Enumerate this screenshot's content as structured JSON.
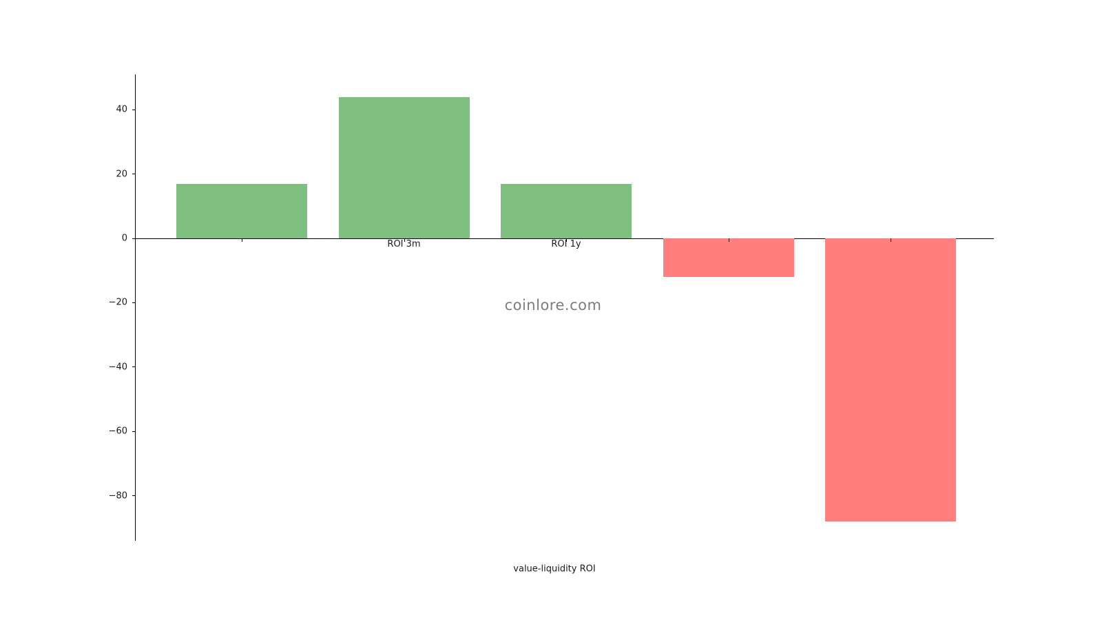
{
  "chart_data": {
    "type": "bar",
    "categories": [
      "",
      "ROI 3m",
      "ROI 1y",
      "",
      ""
    ],
    "values": [
      17,
      44,
      17,
      -12,
      -88
    ],
    "bar_colors": [
      "#7fbf7f",
      "#7fbf7f",
      "#7fbf7f",
      "#ff7f7f",
      "#ff7f7f"
    ],
    "positive_color": "#7fbf7f",
    "negative_color": "#ff7f7f",
    "title": "",
    "xlabel": "value-liquidity ROI",
    "ylabel": "",
    "yticks": [
      40,
      20,
      0,
      -20,
      -40,
      -60,
      -80
    ],
    "ylim": [
      -94,
      51
    ],
    "grid": false,
    "legend": null,
    "axis_color": "#000000"
  },
  "watermark": {
    "text": "coinlore.com",
    "color": "#7c7c7c"
  }
}
